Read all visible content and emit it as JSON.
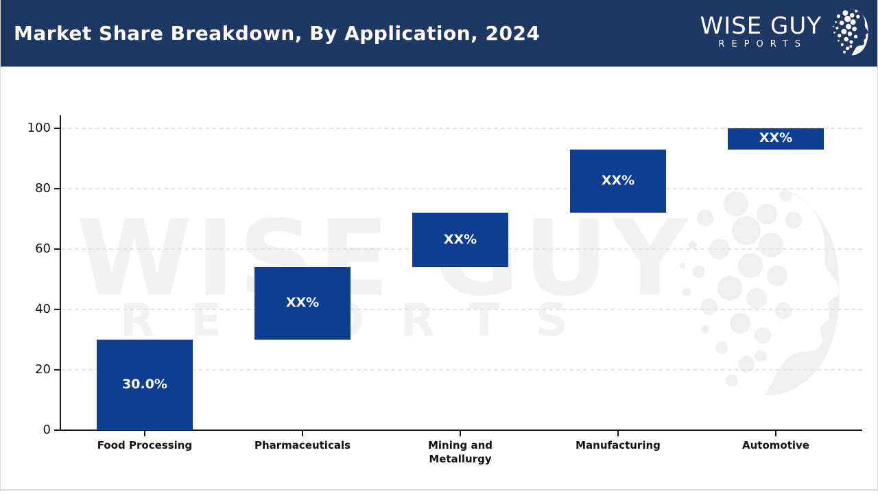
{
  "header": {
    "title": "Market Share Breakdown, By Application, 2024",
    "logo": {
      "line1": "WISE GUY",
      "line2": "REPORTS"
    }
  },
  "watermark": {
    "line1": "WISE GUY",
    "line2": "REPORTS"
  },
  "colors": {
    "header_bg": "#1e3864",
    "bar": "#0d3e92",
    "grid": "#e4e4e4",
    "axis": "#1a1a1a",
    "bar_label_text": "#ffffff",
    "watermark_text": "#f2f2f2",
    "watermark_graphic": "#f0f0f0"
  },
  "chart_data": {
    "type": "bar",
    "subtype": "waterfall",
    "title": "Market Share Breakdown, By Application, 2024",
    "categories": [
      "Food Processing",
      "Pharmaceuticals",
      "Mining and Metallurgy",
      "Manufacturing",
      "Automotive"
    ],
    "segments": [
      {
        "category": "Food Processing",
        "start": 0,
        "end": 30,
        "value": 30,
        "label": "30.0%"
      },
      {
        "category": "Pharmaceuticals",
        "start": 30,
        "end": 54,
        "value": 24,
        "label": "XX%"
      },
      {
        "category": "Mining and Metallurgy",
        "start": 54,
        "end": 72,
        "value": 18,
        "label": "XX%"
      },
      {
        "category": "Manufacturing",
        "start": 72,
        "end": 93,
        "value": 21,
        "label": "XX%"
      },
      {
        "category": "Automotive",
        "start": 93,
        "end": 100,
        "value": 7,
        "label": "XX%"
      }
    ],
    "y_ticks": [
      "0",
      "20",
      "40",
      "60",
      "80",
      "100"
    ],
    "y_tick_values": [
      0,
      20,
      40,
      60,
      80,
      100
    ],
    "ylim": [
      0,
      104
    ],
    "xlabel": "",
    "ylabel": "",
    "grid": "horizontal-dashed",
    "legend": null
  }
}
